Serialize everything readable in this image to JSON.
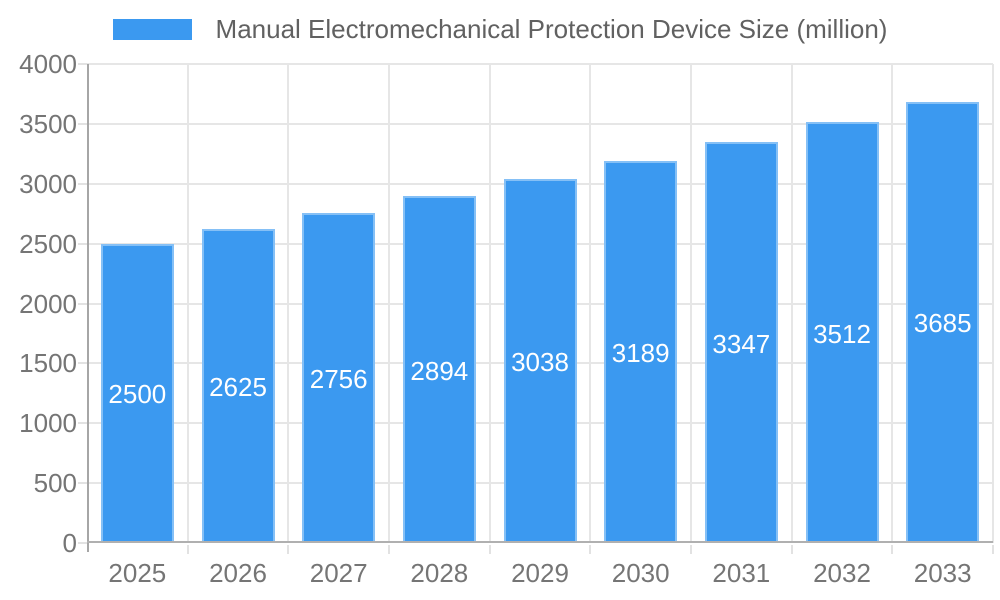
{
  "legend": {
    "label": "Manual Electromechanical Protection Device Size (million)"
  },
  "chart_data": {
    "type": "bar",
    "title": "Manual Electromechanical Protection Device Size (million)",
    "categories": [
      "2025",
      "2026",
      "2027",
      "2028",
      "2029",
      "2030",
      "2031",
      "2032",
      "2033"
    ],
    "values": [
      2500,
      2625,
      2756,
      2894,
      3038,
      3189,
      3347,
      3512,
      3685
    ],
    "bar_labels": [
      "2500",
      "2625",
      "2756",
      "2894",
      "3038",
      "3189",
      "3347",
      "3512",
      "3685"
    ],
    "xlabel": "",
    "ylabel": "",
    "ylim": [
      0,
      4000
    ],
    "yticks": [
      0,
      500,
      1000,
      1500,
      2000,
      2500,
      3000,
      3500,
      4000
    ],
    "grid": true,
    "legend_position": "top-center",
    "bar_label_position": "center-inside"
  },
  "colors": {
    "bar": "#3b99f0",
    "bar_label": "#ffffff",
    "gridline": "#e6e6e6",
    "tick": "#e2e2e2",
    "y_axis_line": "#a6a6a6",
    "x_axis_line": "#b0b0b0",
    "axis_label": "#757575",
    "legend_text": "#616161"
  }
}
